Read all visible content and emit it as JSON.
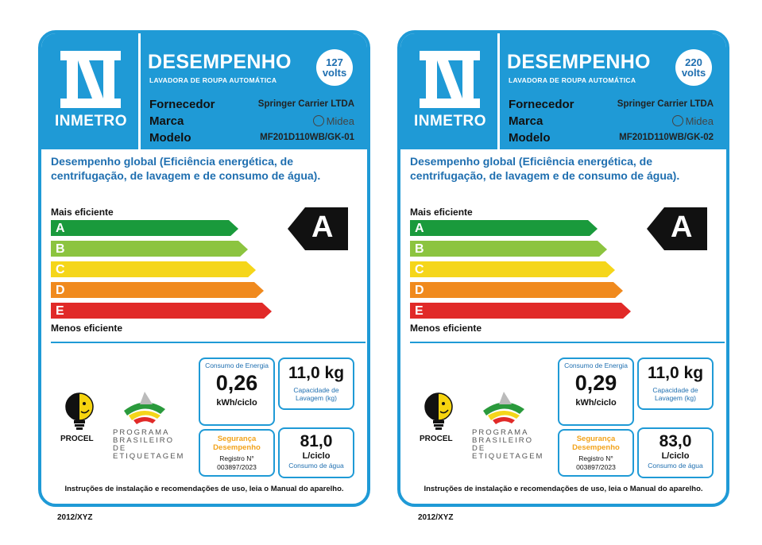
{
  "labels": [
    {
      "logo_text": "INMETRO",
      "title": "DESEMPENHO",
      "subtitle": "LAVADORA DE ROUPA AUTOMÁTICA",
      "volts_value": "127",
      "volts_unit": "volts",
      "fornecedor_key": "Fornecedor",
      "fornecedor_val": "Springer Carrier LTDA",
      "marca_key": "Marca",
      "marca_val": "Midea",
      "modelo_key": "Modelo",
      "modelo_val": "MF201D110WB/GK-01",
      "global_text": "Desempenho global (Eficiência energética, de centrifugação, de lavagem e de consumo de água).",
      "mais": "Mais eficiente",
      "menos": "Menos eficiente",
      "bars": [
        "A",
        "B",
        "C",
        "D",
        "E"
      ],
      "rating": "A",
      "energy_title": "Consumo de Energia",
      "energy_value": "0,26",
      "energy_unit": "kWh/ciclo",
      "capacity_value": "11,0 kg",
      "capacity_title": "Capacidade de Lavagem (kg)",
      "safety_title": "Segurança Desempenho",
      "registro_label": "Registro N°",
      "registro_value": "003897/2023",
      "water_value": "81,0",
      "water_unit": "L/ciclo",
      "water_title": "Consumo de água",
      "procel": "PROCEL",
      "pbe": "PROGRAMA BRASILEIRO DE ETIQUETAGEM",
      "footer": "Instruções de instalação e recomendações de uso, leia o Manual do aparelho.",
      "code": "2012/XYZ"
    },
    {
      "logo_text": "INMETRO",
      "title": "DESEMPENHO",
      "subtitle": "LAVADORA DE ROUPA AUTOMÁTICA",
      "volts_value": "220",
      "volts_unit": "volts",
      "fornecedor_key": "Fornecedor",
      "fornecedor_val": "Springer Carrier LTDA",
      "marca_key": "Marca",
      "marca_val": "Midea",
      "modelo_key": "Modelo",
      "modelo_val": "MF201D110WB/GK-02",
      "global_text": "Desempenho global (Eficiência energética, de centrifugação, de lavagem e de consumo de água).",
      "mais": "Mais eficiente",
      "menos": "Menos eficiente",
      "bars": [
        "A",
        "B",
        "C",
        "D",
        "E"
      ],
      "rating": "A",
      "energy_title": "Consumo de Energia",
      "energy_value": "0,29",
      "energy_unit": "kWh/ciclo",
      "capacity_value": "11,0 kg",
      "capacity_title": "Capacidade de Lavagem (kg)",
      "safety_title": "Segurança Desempenho",
      "registro_label": "Registro N°",
      "registro_value": "003897/2023",
      "water_value": "83,0",
      "water_unit": "L/ciclo",
      "water_title": "Consumo de água",
      "procel": "PROCEL",
      "pbe": "PROGRAMA BRASILEIRO DE ETIQUETAGEM",
      "footer": "Instruções de instalação e recomendações de uso, leia o Manual do aparelho.",
      "code": "2012/XYZ"
    }
  ],
  "colors": {
    "brand_blue": "#1f9ad6",
    "bar_A": "#1a9a3c",
    "bar_B": "#8cc43f",
    "bar_C": "#f5d61a",
    "bar_D": "#f08a1e",
    "bar_E": "#e12a28",
    "rating_bg": "#111111"
  }
}
